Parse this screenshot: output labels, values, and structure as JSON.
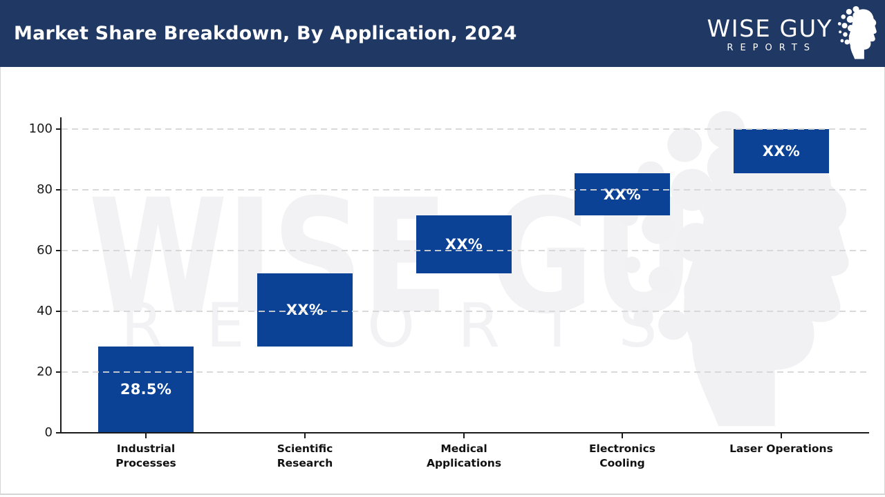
{
  "header": {
    "title": "Market Share Breakdown, By Application, 2024",
    "logo": {
      "name_line": "WISE GUY",
      "sub_line": "REPORTS"
    }
  },
  "watermark": {
    "line1": "WISE GUY",
    "line2": "REPORTS"
  },
  "colors": {
    "header_bg": "#1f3864",
    "bar": "#0b4296",
    "axis": "#1a1a1a",
    "grid": "#d9d9d9",
    "value_label": "#ffffff"
  },
  "chart_data": {
    "type": "bar",
    "subtype": "waterfall",
    "title": "Market Share Breakdown, By Application, 2024",
    "xlabel": "",
    "ylabel": "",
    "ylim": [
      0,
      100
    ],
    "yticks": [
      0,
      20,
      40,
      60,
      80,
      100
    ],
    "grid": "horizontal-dashed",
    "legend": "none",
    "categories": [
      "Industrial\nProcesses",
      "Scientific\nResearch",
      "Medical\nApplications",
      "Electronics\nCooling",
      "Laser Operations"
    ],
    "bars": [
      {
        "category": "Industrial Processes",
        "start": 0,
        "end": 28.5,
        "span": 28.5,
        "label": "28.5%"
      },
      {
        "category": "Scientific Research",
        "start": 28.5,
        "end": 52.5,
        "span": 24,
        "label": "XX%"
      },
      {
        "category": "Medical Applications",
        "start": 52.5,
        "end": 71.5,
        "span": 19,
        "label": "XX%"
      },
      {
        "category": "Electronics Cooling",
        "start": 71.5,
        "end": 85.5,
        "span": 14,
        "label": "XX%"
      },
      {
        "category": "Laser Operations",
        "start": 85.5,
        "end": 100,
        "span": 14.5,
        "label": "XX%"
      }
    ]
  }
}
